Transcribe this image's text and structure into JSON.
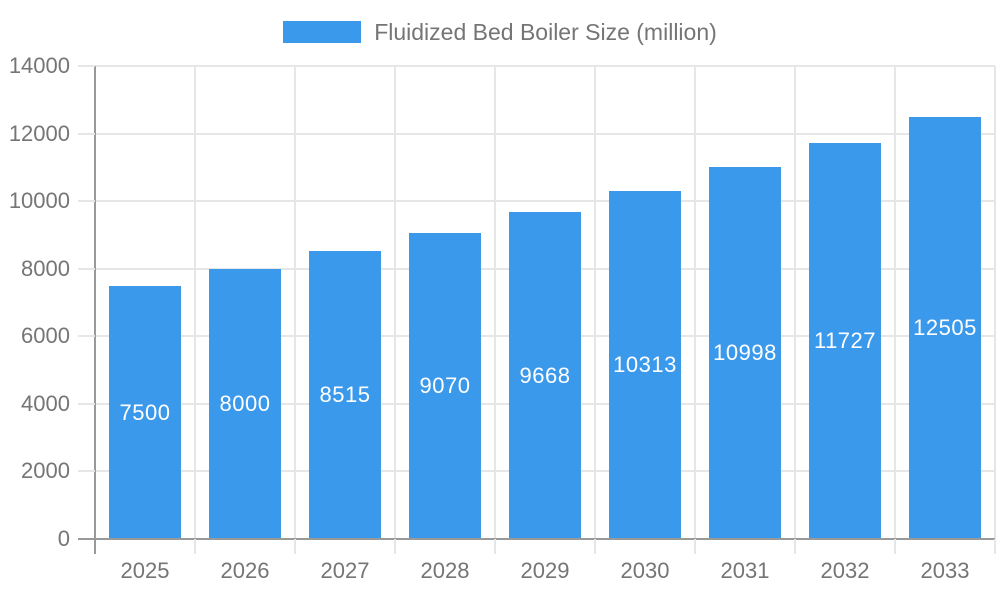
{
  "chart_data": {
    "type": "bar",
    "legend": "Fluidized Bed Boiler Size (million)",
    "legend_position": "top",
    "categories": [
      "2025",
      "2026",
      "2027",
      "2028",
      "2029",
      "2030",
      "2031",
      "2032",
      "2033"
    ],
    "values": [
      7500,
      8000,
      8515,
      9070,
      9668,
      10313,
      10998,
      11727,
      12505
    ],
    "xlabel": "",
    "ylabel": "",
    "ylim": [
      0,
      14000
    ],
    "yticks": [
      0,
      2000,
      4000,
      6000,
      8000,
      10000,
      12000,
      14000
    ],
    "grid": true,
    "colors": {
      "bar": "#3B99EC",
      "bar_label": "#ffffff",
      "axis": "#999999",
      "grid": "#e6e6e6",
      "tick_text": "#757575",
      "legend_text": "#757575"
    }
  }
}
